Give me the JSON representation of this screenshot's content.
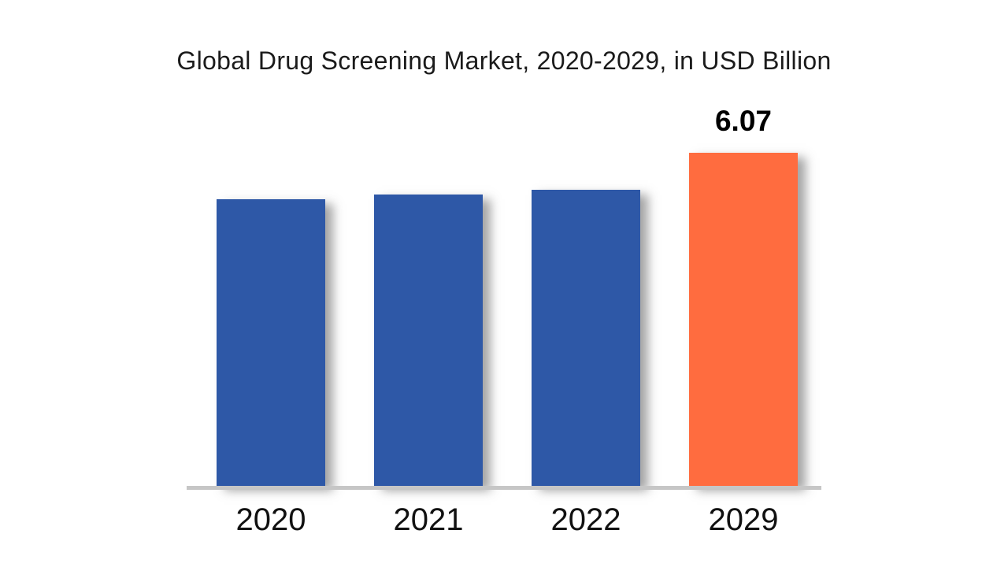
{
  "chart_data": {
    "type": "bar",
    "title": "Global Drug Screening Market, 2020-2029, in USD Billion",
    "categories": [
      "2020",
      "2021",
      "2022",
      "2029"
    ],
    "values": [
      5.22,
      5.31,
      5.4,
      6.07
    ],
    "data_labels": [
      "",
      "",
      "",
      "6.07"
    ],
    "bar_colors": [
      "#2e58a7",
      "#2e58a7",
      "#2e58a7",
      "#ff6c3f"
    ],
    "bar_color": "#2e58a7",
    "highlight_color": "#ff6c3f",
    "title_color": "#1b1b1b",
    "label_color": "#111111",
    "axis_line_color": "#c6c6c6",
    "shadow_color": "rgba(75,75,75,0.5)",
    "xlabel": "",
    "ylabel": "",
    "ylim": [
      0,
      6.07
    ],
    "grid": false,
    "legend": false
  }
}
